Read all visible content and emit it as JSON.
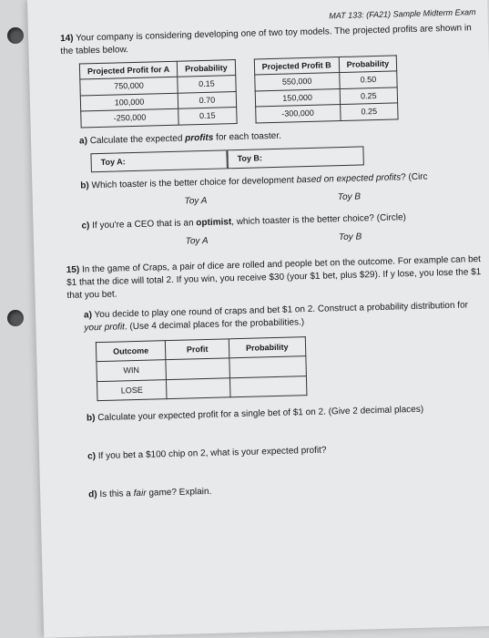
{
  "header": "MAT 133: (FA21) Sample Midterm Exam",
  "q14": {
    "num": "14)",
    "text": "Your company is considering developing one of two toy models. The projected profits are shown in the tables below.",
    "tableA": {
      "h1": "Projected Profit for A",
      "h2": "Probability",
      "rows": [
        [
          "750,000",
          "0.15"
        ],
        [
          "100,000",
          "0.70"
        ],
        [
          "-250,000",
          "0.15"
        ]
      ]
    },
    "tableB": {
      "h1": "Projected Profit B",
      "h2": "Probability",
      "rows": [
        [
          "550,000",
          "0.50"
        ],
        [
          "150,000",
          "0.25"
        ],
        [
          "-300,000",
          "0.25"
        ]
      ]
    },
    "a": {
      "label": "a)",
      "text": "Calculate the expected profits for each toaster.",
      "boxA": "Toy A:",
      "boxB": "Toy B:"
    },
    "b": {
      "label": "b)",
      "text": "Which toaster is the better choice for development based on expected profits? (Circ",
      "optA": "Toy A",
      "optB": "Toy B"
    },
    "c": {
      "label": "c)",
      "text": "If you're a CEO that is an optimist, which toaster is the better choice? (Circle)",
      "optA": "Toy A",
      "optB": "Toy B"
    }
  },
  "q15": {
    "num": "15)",
    "text": "In the game of Craps, a pair of dice are rolled and people bet on the outcome. For example can bet $1 that the dice will total 2. If you win, you receive $30 (your $1 bet, plus $29). If y lose, you lose the $1 that you bet.",
    "a": {
      "label": "a)",
      "text": "You decide to play one round of craps and bet $1 on 2. Construct a probability distribution for your profit. (Use 4 decimal places for the probabilities.)"
    },
    "table": {
      "h1": "Outcome",
      "h2": "Profit",
      "h3": "Probability",
      "r1": "WIN",
      "r2": "LOSE"
    },
    "b": {
      "label": "b)",
      "text": "Calculate your expected profit for a single bet of $1 on 2. (Give 2 decimal places)"
    },
    "c": {
      "label": "c)",
      "text": "If you bet a $100 chip on 2, what is your expected profit?"
    },
    "d": {
      "label": "d)",
      "text": "Is this a fair game? Explain."
    }
  }
}
